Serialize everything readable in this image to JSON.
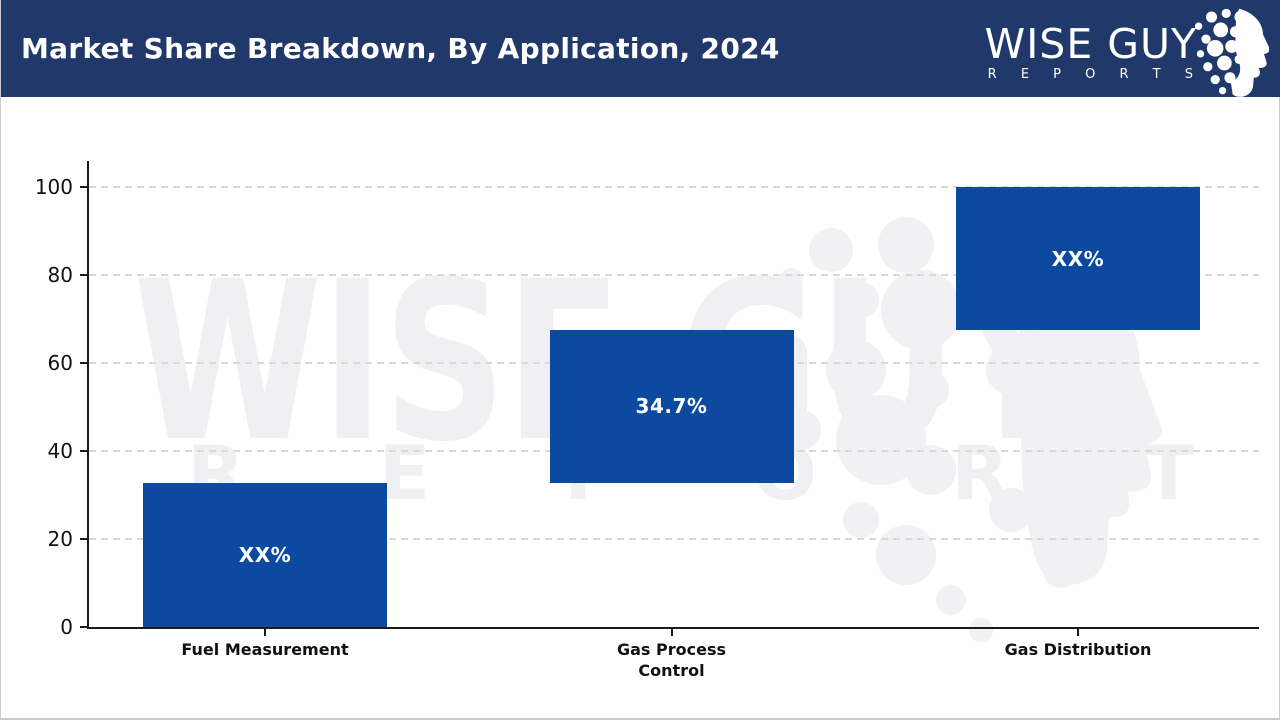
{
  "header": {
    "title": "Market Share Breakdown, By Application, 2024",
    "logo": {
      "line1": "WISE GUY",
      "line2": "R E P O R T S"
    }
  },
  "watermark": {
    "line1": "WISE GUY",
    "line2": "R E P O R T S"
  },
  "colors": {
    "header_bg": "#21396A",
    "bar": "#0B4A9F",
    "grid": "#D9D9D9",
    "axis": "#1A1A1A",
    "bar_label": "#FFFFFF",
    "watermark": "#F0F0F3"
  },
  "chart_data": {
    "type": "bar",
    "variant": "floating-stacked-waterfall",
    "title": "Market Share Breakdown, By Application, 2024",
    "categories": [
      "Fuel Measurement",
      "Gas Process\nControl",
      "Gas Distribution"
    ],
    "bars": [
      {
        "category": "Fuel Measurement",
        "start": 0,
        "end": 32.8,
        "label": "XX%"
      },
      {
        "category": "Gas Process Control",
        "start": 32.8,
        "end": 67.5,
        "label": "34.7%"
      },
      {
        "category": "Gas Distribution",
        "start": 67.5,
        "end": 100,
        "label": "XX%"
      }
    ],
    "ylabel": "",
    "xlabel": "",
    "yticks": [
      0,
      20,
      40,
      60,
      80,
      100
    ],
    "ylim": [
      0,
      106
    ],
    "grid": "horizontal-dashed",
    "legend": "none"
  }
}
